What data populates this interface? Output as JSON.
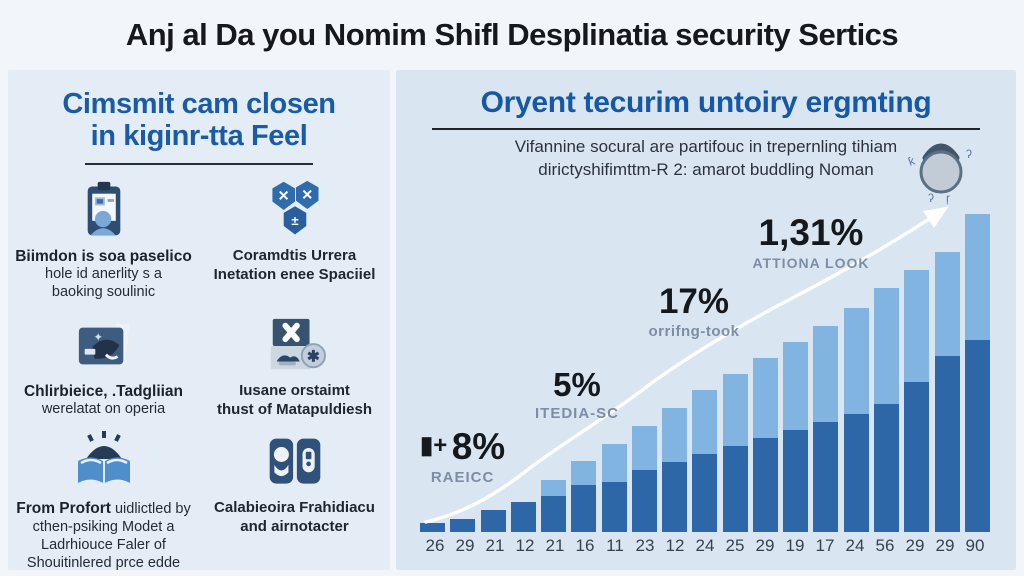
{
  "header": {
    "title": "Anj al Da you Nomim Shifl Desplinatia security Sertics"
  },
  "left_panel": {
    "title_line1": "Cimsmit cam closen",
    "title_line2": "in kiginr-tta Feel",
    "items": [
      {
        "icon": "clipboard-person-icon",
        "line1": "Biimdon is soa paselico",
        "line2": "hole id anerlity s a",
        "line3": "baoking soulinic"
      },
      {
        "icon": "shield-cluster-icon",
        "line1": "Coramdtis Urrera",
        "line2": "Inetation enee Spaciiel"
      },
      {
        "icon": "briefcase-bird-icon",
        "line1": "Chlirbieice, .Tadgliian",
        "line2": "werelatat on operia"
      },
      {
        "icon": "crate-x-icon",
        "line1": "Iusane orstaimt",
        "line2": "thust of Matapuldiesh"
      },
      {
        "icon": "book-dome-icon",
        "line1_bold": "From Profort",
        "line1_rest": " uidlictled by",
        "line2": "cthen-psiking Modet a",
        "line3": "Ladrhiouce Faler of",
        "line4": "Shouitinlered prce edde"
      },
      {
        "icon": "id-badges-icon",
        "line1": "Calabieoira Frahidiacu",
        "line2": "and airnotacter"
      }
    ]
  },
  "right_panel": {
    "title": "Oryent tecurim untoiry ergmting",
    "subtitle_line1": "Vifannine socural are partifouc in trepernling tihiam",
    "subtitle_line2": "dirictyshifimttm-R 2: amarot buddling Noman",
    "decoration": "kettlebell-icon"
  },
  "chart_data": {
    "type": "bar",
    "stacked": true,
    "orientation": "vertical",
    "title": "Oryent tecurim untoiry ergmting",
    "categories": [
      "26",
      "29",
      "21",
      "12",
      "21",
      "16",
      "11",
      "23",
      "12",
      "24",
      "25",
      "29",
      "19",
      "17",
      "24",
      "56",
      "29",
      "29",
      "90"
    ],
    "series": [
      {
        "name": "dark-segment",
        "color": "#2d67a7",
        "values": [
          9,
          13,
          22,
          30,
          36,
          47,
          50,
          62,
          70,
          78,
          86,
          94,
          102,
          110,
          118,
          128,
          150,
          176,
          192
        ]
      },
      {
        "name": "light-segment",
        "color": "#82b4e2",
        "values": [
          0,
          0,
          0,
          0,
          16,
          24,
          38,
          44,
          54,
          64,
          72,
          80,
          88,
          96,
          106,
          116,
          112,
          104,
          126
        ]
      }
    ],
    "values_unit": "relative-height (plot max 335)",
    "annotations": [
      {
        "prefix": "▮+",
        "value": "8%",
        "label": "RAEICC"
      },
      {
        "value": "5%",
        "label": "ITEDIA-SC"
      },
      {
        "value": "17%",
        "label": "orrifng-took"
      },
      {
        "value": "1,31%",
        "label": "ATTIONA LOOK"
      }
    ],
    "trend_line": {
      "style": "white-arrow",
      "direction": "up-right"
    },
    "legend": "none",
    "grid": false,
    "xlabel": "",
    "ylabel": ""
  }
}
